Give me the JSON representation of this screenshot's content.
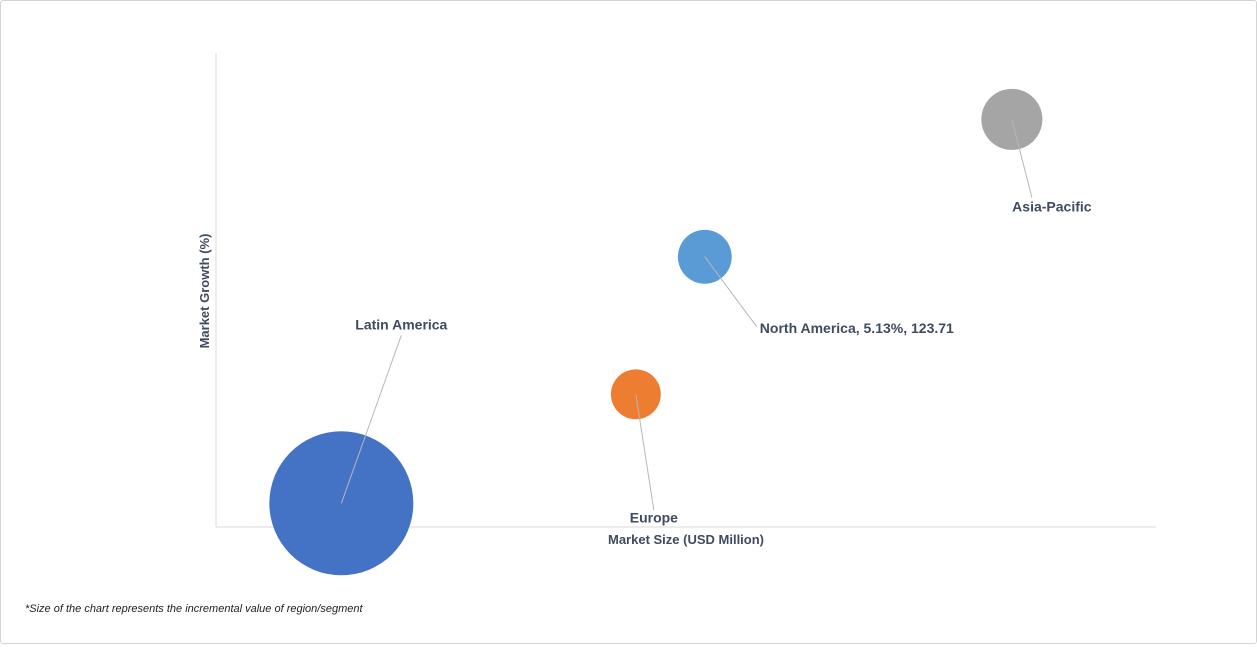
{
  "chart_data": {
    "type": "scatter",
    "subtype": "bubble",
    "xlabel": "Market Size (USD Million)",
    "ylabel": "Market Growth (%)",
    "grid": false,
    "legend": "none",
    "points": [
      {
        "label": "Latin America",
        "x": 40,
        "y": 5,
        "size": 100,
        "color": "#4472c4"
      },
      {
        "label": "Europe",
        "x": 134,
        "y": 28,
        "size": 12,
        "color": "#ed7d31"
      },
      {
        "label": "North America, 5.13%, 123.71",
        "x": 156,
        "y": 57,
        "size": 14,
        "color": "#5b9bd5"
      },
      {
        "label": "Asia-Pacific",
        "x": 254,
        "y": 86,
        "size": 18,
        "color": "#a5a5a5"
      }
    ]
  },
  "footnote": "*Size of the chart represents the incremental value of region/segment"
}
